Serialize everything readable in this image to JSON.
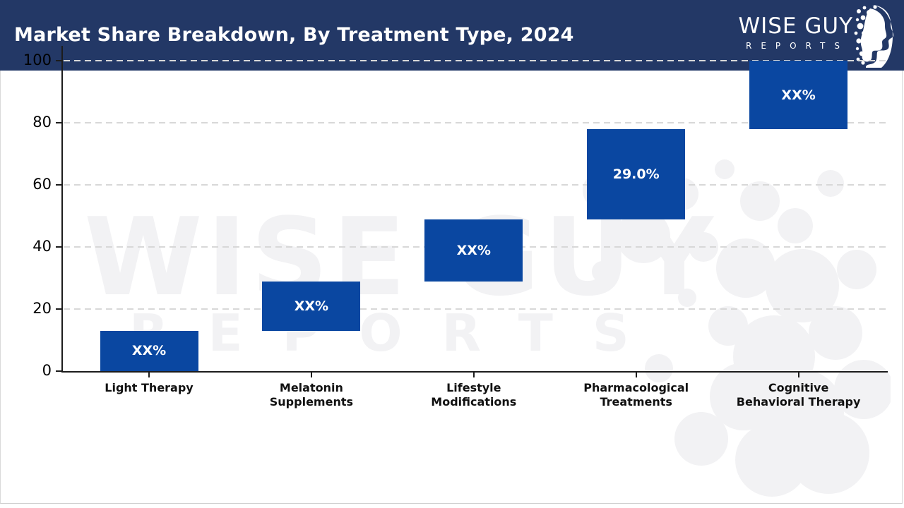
{
  "header": {
    "title": "Market Share Breakdown, By Treatment Type, 2024",
    "bg_color": "#233866",
    "logo": {
      "line1": "WISE GUY",
      "line2": "REPORTS"
    }
  },
  "watermark": {
    "line1": "WISE GUY",
    "line2": "REPORTS"
  },
  "chart_data": {
    "type": "bar",
    "subtype": "waterfall",
    "title": "Market Share Breakdown, By Treatment Type, 2024",
    "xlabel": "",
    "ylabel": "",
    "ylim": [
      0,
      100
    ],
    "yticks": [
      0,
      20,
      40,
      60,
      80,
      100
    ],
    "grid": "dashed-horizontal",
    "legend": "none",
    "bar_color": "#0a47a1",
    "value_label_color": "#ffffff",
    "categories": [
      "Light Therapy",
      "Melatonin Supplements",
      "Lifestyle Modifications",
      "Pharmacological Treatments",
      "Cognitive Behavioral Therapy"
    ],
    "category_lines": [
      [
        "Light Therapy"
      ],
      [
        "Melatonin",
        "Supplements"
      ],
      [
        "Lifestyle",
        "Modifications"
      ],
      [
        "Pharmacological",
        "Treatments"
      ],
      [
        "Cognitive",
        "Behavioral Therapy"
      ]
    ],
    "segments": [
      {
        "category": "Light Therapy",
        "label": "XX%",
        "start": 0,
        "end": 13
      },
      {
        "category": "Melatonin Supplements",
        "label": "XX%",
        "start": 13,
        "end": 29
      },
      {
        "category": "Lifestyle Modifications",
        "label": "XX%",
        "start": 29,
        "end": 49
      },
      {
        "category": "Pharmacological Treatments",
        "label": "29.0%",
        "start": 49,
        "end": 78
      },
      {
        "category": "Cognitive Behavioral Therapy",
        "label": "XX%",
        "start": 78,
        "end": 100
      }
    ]
  }
}
